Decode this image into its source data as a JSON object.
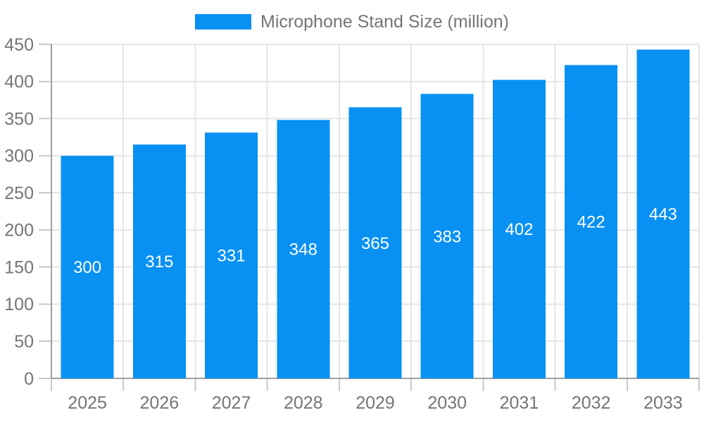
{
  "legend": {
    "label": "Microphone Stand Size (million)"
  },
  "colors": {
    "bar": "#0891F3",
    "value_label": "#FFFFFF",
    "axis_text": "#757575",
    "grid_line": "#E6E6E6",
    "tick_line": "#C9C9C9",
    "axis_line": "#9E9E9E",
    "background": "#FFFFFF"
  },
  "chart_data": {
    "type": "bar",
    "title": "Microphone Stand Size (million)",
    "categories": [
      "2025",
      "2026",
      "2027",
      "2028",
      "2029",
      "2030",
      "2031",
      "2032",
      "2033"
    ],
    "series": [
      {
        "name": "Microphone Stand Size (million)",
        "values": [
          300,
          315,
          331,
          348,
          365,
          383,
          402,
          422,
          443
        ]
      }
    ],
    "xlabel": "",
    "ylabel": "",
    "ylim": [
      0,
      450
    ],
    "ytick_step": 50,
    "grid": true,
    "legend_position": "top",
    "value_label_position": "inside-center"
  }
}
